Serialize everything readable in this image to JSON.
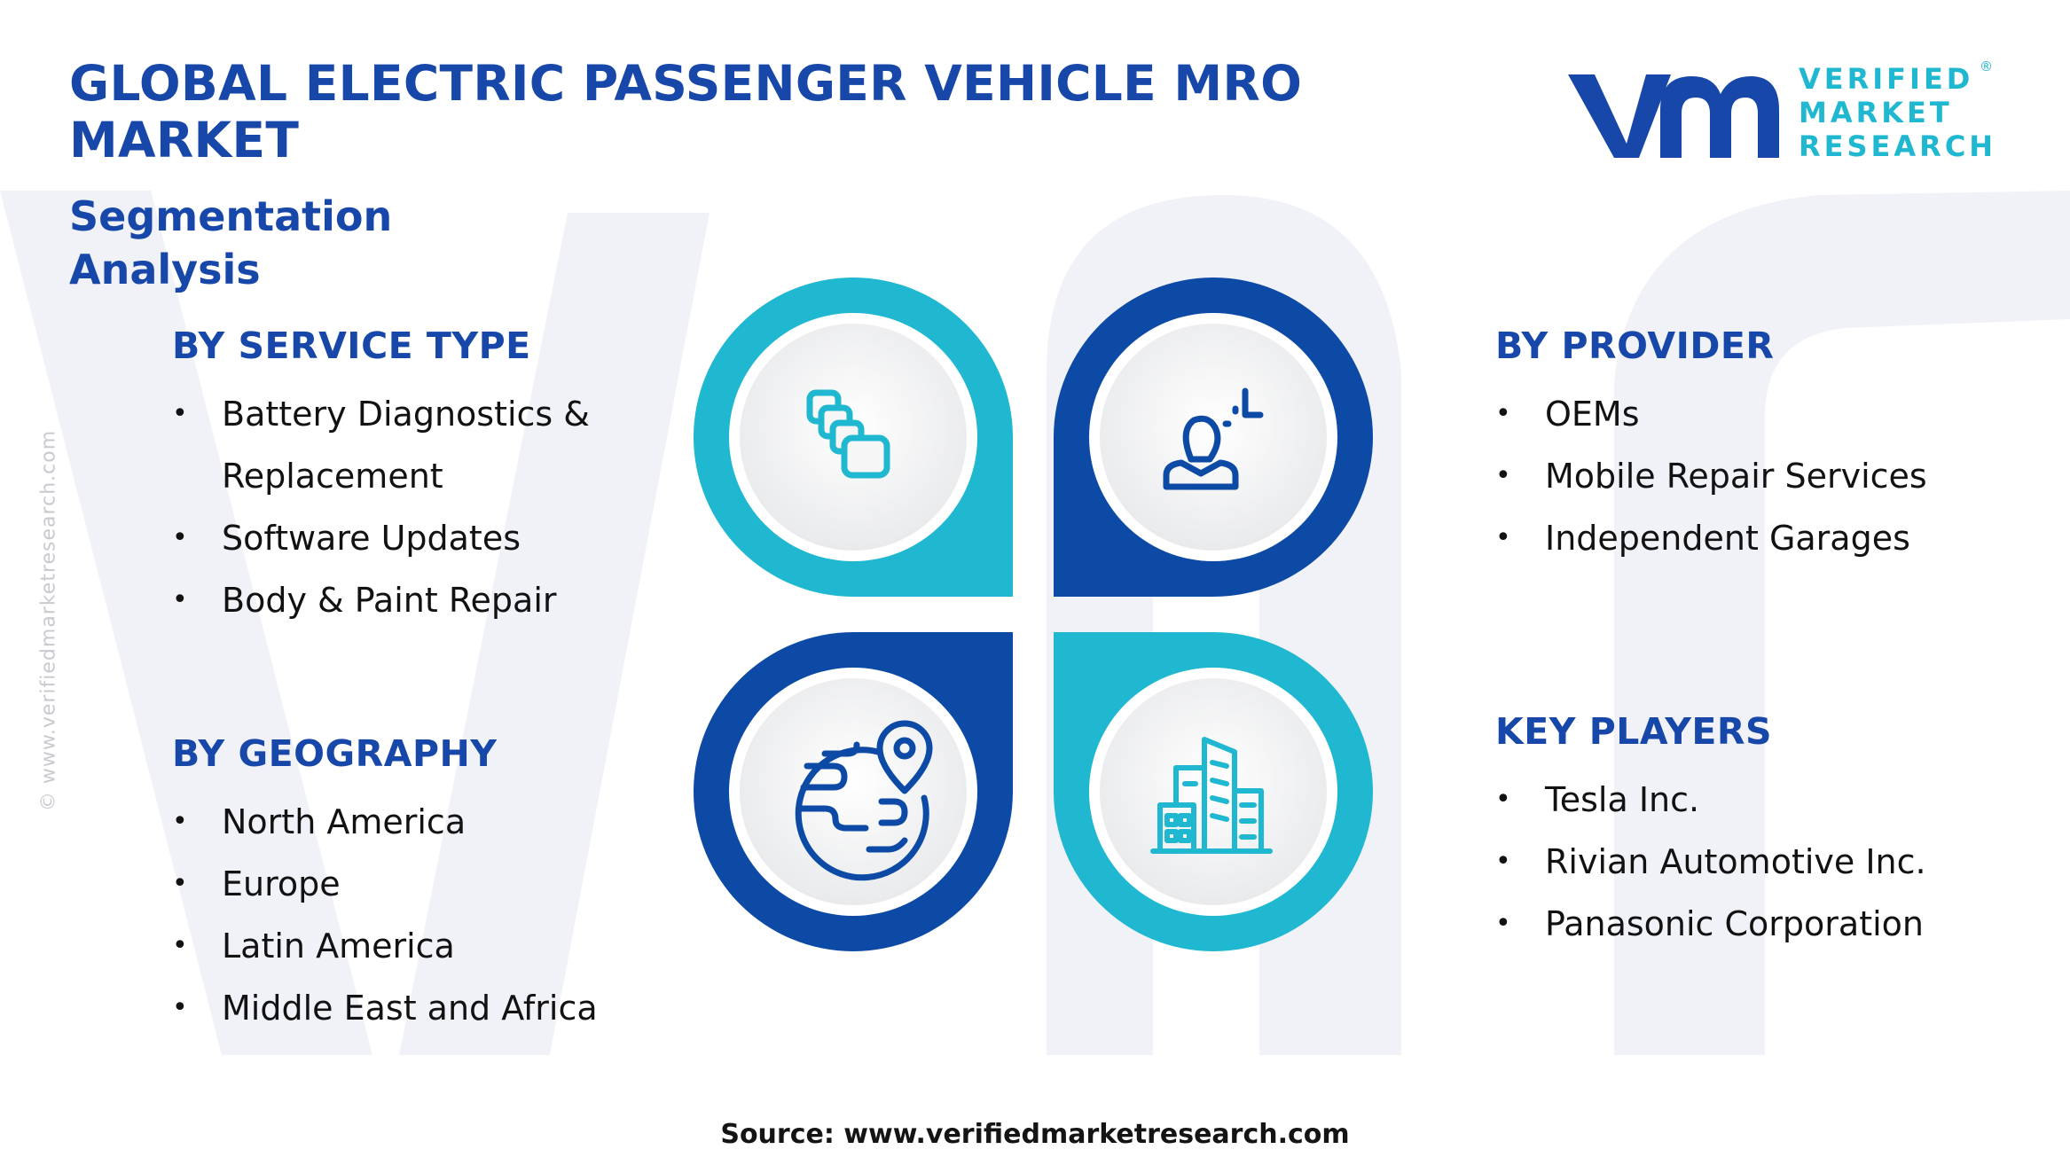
{
  "header": {
    "title": "GLOBAL ELECTRIC PASSENGER VEHICLE MRO MARKET",
    "subtitle": "Segmentation Analysis"
  },
  "logo": {
    "line1": "VERIFIED",
    "line2": "MARKET",
    "line3": "RESEARCH",
    "registered": "®"
  },
  "side_credit": "© www.verifiedmarketresearch.com",
  "segments": {
    "service_type": {
      "heading": "BY SERVICE TYPE",
      "items": [
        "Battery Diagnostics & Replacement",
        "Software Updates",
        "Body & Paint Repair"
      ]
    },
    "geography": {
      "heading": "BY GEOGRAPHY",
      "items": [
        "North America",
        "Europe",
        "Latin America",
        "Middle East and Africa"
      ]
    },
    "provider": {
      "heading": "BY PROVIDER",
      "items": [
        "OEMs",
        "Mobile Repair Services",
        "Independent Garages"
      ]
    },
    "key_players": {
      "heading": "KEY PLAYERS",
      "items": [
        "Tesla Inc.",
        "Rivian Automotive Inc.",
        "Panasonic Corporation"
      ]
    }
  },
  "icons": {
    "top_left": "stacked-squares-icon",
    "top_right": "person-signal-icon",
    "bottom_left": "globe-location-icon",
    "bottom_right": "buildings-icon"
  },
  "colors": {
    "dark_blue": "#1747a8",
    "cyan": "#1fb8d0",
    "text": "#121212",
    "watermark": "#eef0f6"
  },
  "footer": {
    "source": "Source: www.verifiedmarketresearch.com"
  }
}
